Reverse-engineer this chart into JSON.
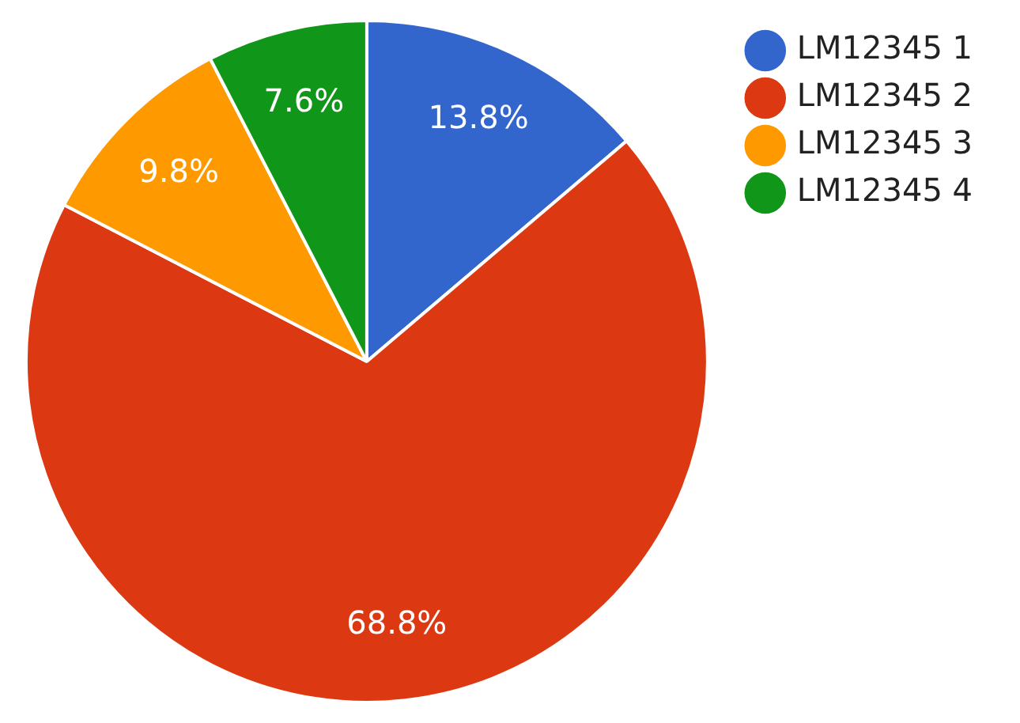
{
  "chart_data": {
    "type": "pie",
    "categories": [
      "LM12345 1",
      "LM12345 2",
      "LM12345 3",
      "LM12345 4"
    ],
    "values": [
      13.8,
      68.8,
      9.8,
      7.6
    ],
    "colors": [
      "#3366cc",
      "#dc3912",
      "#ff9900",
      "#109618"
    ],
    "value_labels": [
      "13.8%",
      "68.8%",
      "9.8%",
      "7.6%"
    ],
    "legend": "top right"
  }
}
